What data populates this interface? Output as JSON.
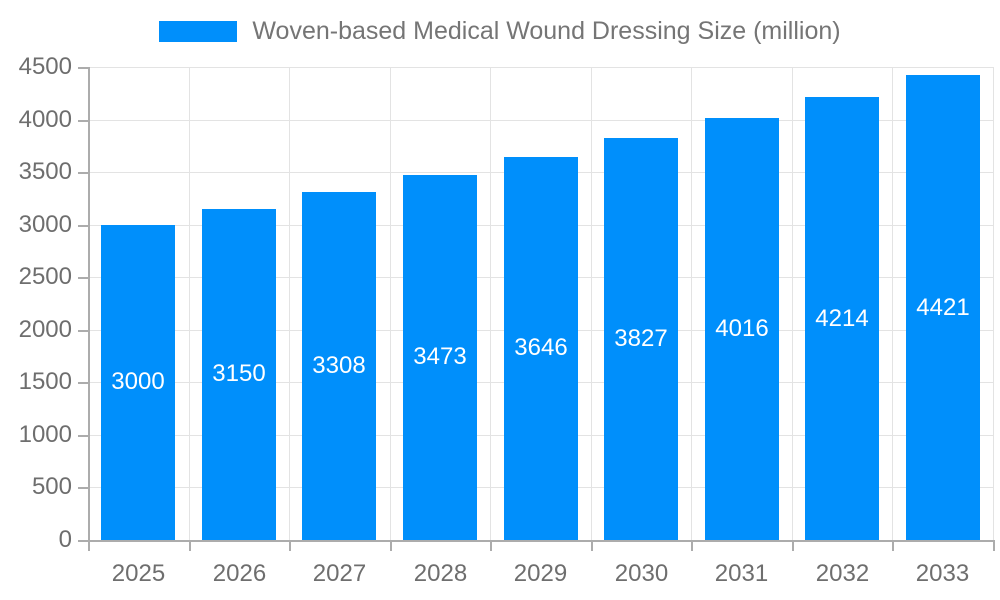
{
  "chart_data": {
    "type": "bar",
    "title": "Woven-based Medical Wound Dressing Size (million)",
    "categories": [
      "2025",
      "2026",
      "2027",
      "2028",
      "2029",
      "2030",
      "2031",
      "2032",
      "2033"
    ],
    "series": [
      {
        "name": "Woven-based Medical Wound Dressing Size (million)",
        "values": [
          3000,
          3150,
          3308,
          3473,
          3646,
          3827,
          4016,
          4214,
          4421
        ]
      }
    ],
    "xlabel": "",
    "ylabel": "",
    "ylim": [
      0,
      4500
    ],
    "yticks": [
      0,
      500,
      1000,
      1500,
      2000,
      2500,
      3000,
      3500,
      4000,
      4500
    ],
    "grid": true,
    "legend_position": "top",
    "legend_marker": "rectangle",
    "colors": {
      "bar": "#008FFB",
      "grid": "#e3e3e3",
      "axis": "#acacac",
      "axis_label_text": "#6e6e6e",
      "legend_text": "#757575",
      "bar_label_text": "#ffffff",
      "background": "#ffffff"
    }
  }
}
